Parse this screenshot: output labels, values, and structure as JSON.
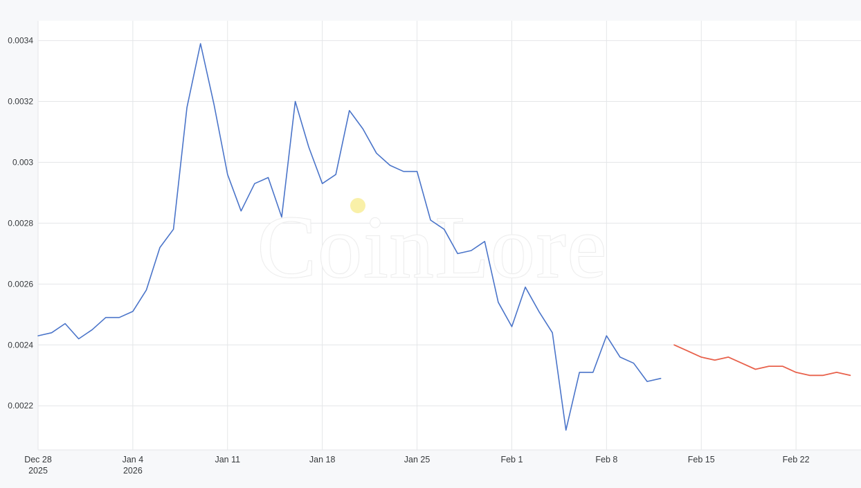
{
  "page": {
    "background": "#f7f8fa",
    "plot_background": "#ffffff"
  },
  "chart_data": {
    "type": "line",
    "title": "",
    "watermark": "CoinLore",
    "legend": "none",
    "grid": true,
    "x_axis": {
      "unit": "day",
      "xlim": [
        0,
        60.8
      ],
      "ticks": [
        {
          "day": 0,
          "label": "Dec 28",
          "sublabel": "2025"
        },
        {
          "day": 7,
          "label": "Jan 4",
          "sublabel": "2026"
        },
        {
          "day": 14,
          "label": "Jan 11",
          "sublabel": ""
        },
        {
          "day": 21,
          "label": "Jan 18",
          "sublabel": ""
        },
        {
          "day": 28,
          "label": "Jan 25",
          "sublabel": ""
        },
        {
          "day": 35,
          "label": "Feb 1",
          "sublabel": ""
        },
        {
          "day": 42,
          "label": "Feb 8",
          "sublabel": ""
        },
        {
          "day": 49,
          "label": "Feb 15",
          "sublabel": ""
        },
        {
          "day": 56,
          "label": "Feb 22",
          "sublabel": ""
        }
      ]
    },
    "y_axis": {
      "ylim": [
        0.002055,
        0.003465
      ],
      "ticks": [
        0.0022,
        0.0024,
        0.0026,
        0.0028,
        0.003,
        0.0032,
        0.0034
      ],
      "tick_labels": [
        "0.0022",
        "0.0024",
        "0.0026",
        "0.0028",
        "0.003",
        "0.0032",
        "0.0034"
      ]
    },
    "series": [
      {
        "name": "historical-price",
        "color": "#4a74c9",
        "stroke_width": 1.6,
        "start_day": 0,
        "values": [
          0.00243,
          0.00244,
          0.00247,
          0.00242,
          0.00245,
          0.00249,
          0.00249,
          0.00251,
          0.00258,
          0.00272,
          0.00278,
          0.00318,
          0.00339,
          0.00319,
          0.00296,
          0.00284,
          0.00293,
          0.00295,
          0.00282,
          0.0032,
          0.00305,
          0.00293,
          0.00296,
          0.00317,
          0.00311,
          0.00303,
          0.00299,
          0.00297,
          0.00297,
          0.00281,
          0.00278,
          0.0027,
          0.00271,
          0.00274,
          0.00254,
          0.00246,
          0.00259,
          0.00251,
          0.00244,
          0.00212,
          0.00231,
          0.00231,
          0.00243,
          0.00236,
          0.00234,
          0.00228,
          0.00229
        ]
      },
      {
        "name": "forecast-price",
        "color": "#e8614b",
        "stroke_width": 1.8,
        "start_day": 47,
        "values": [
          0.0024,
          0.00238,
          0.00236,
          0.00235,
          0.00236,
          0.00234,
          0.00232,
          0.00233,
          0.00233,
          0.00231,
          0.0023,
          0.0023,
          0.00231,
          0.0023
        ]
      }
    ],
    "colors": {
      "grid": "#e4e6e8",
      "tick_text": "#35383b",
      "watermark_fill": "#ffffff",
      "watermark_stroke": "#ececec",
      "watermark_dot": "#f8ee9e"
    }
  }
}
